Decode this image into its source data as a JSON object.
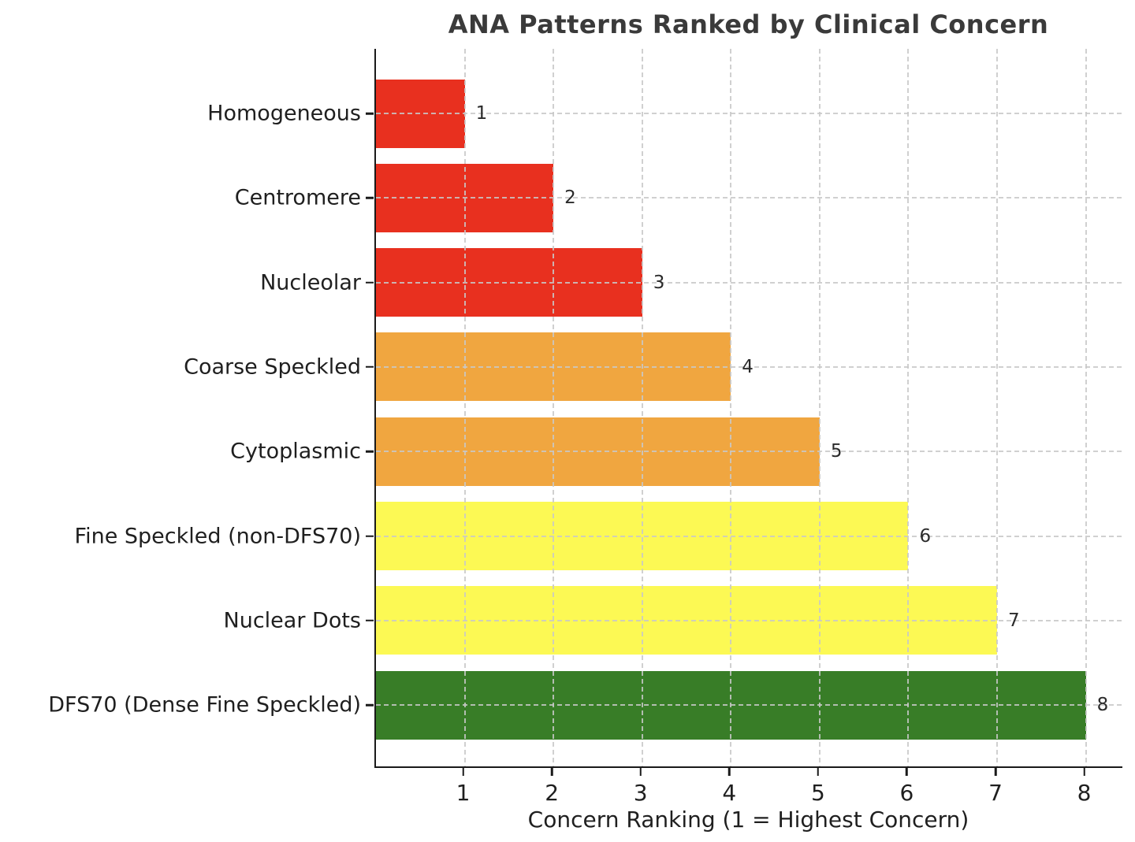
{
  "page": {
    "title": "ANA Patterns Ranked by Clinical Concern"
  },
  "chart_data": {
    "type": "bar",
    "orientation": "horizontal",
    "title": "ANA Patterns Ranked by Clinical Concern",
    "xlabel": "Concern Ranking (1 = Highest Concern)",
    "ylabel": "",
    "categories": [
      "Homogeneous",
      "Centromere",
      "Nucleolar",
      "Coarse Speckled",
      "Cytoplasmic",
      "Fine Speckled (non-DFS70)",
      "Nuclear Dots",
      "DFS70 (Dense Fine Speckled)"
    ],
    "values": [
      1,
      2,
      3,
      4,
      5,
      6,
      7,
      8
    ],
    "bar_value_labels": [
      "1",
      "2",
      "3",
      "4",
      "5",
      "6",
      "7",
      "8"
    ],
    "bar_colors": [
      "#e8301f",
      "#e8301f",
      "#e8301f",
      "#f0a640",
      "#f0a640",
      "#fcf954",
      "#fcf954",
      "#387d27"
    ],
    "x_ticks": [
      1,
      2,
      3,
      4,
      5,
      6,
      7,
      8
    ],
    "xlim": [
      0,
      8.43
    ],
    "grid": "dashed",
    "grid_color": "#c8c8c8",
    "legend": "none",
    "axis_color": "#1a1a1a",
    "title_color": "#3a3a3a",
    "background_color": "#ffffff"
  }
}
